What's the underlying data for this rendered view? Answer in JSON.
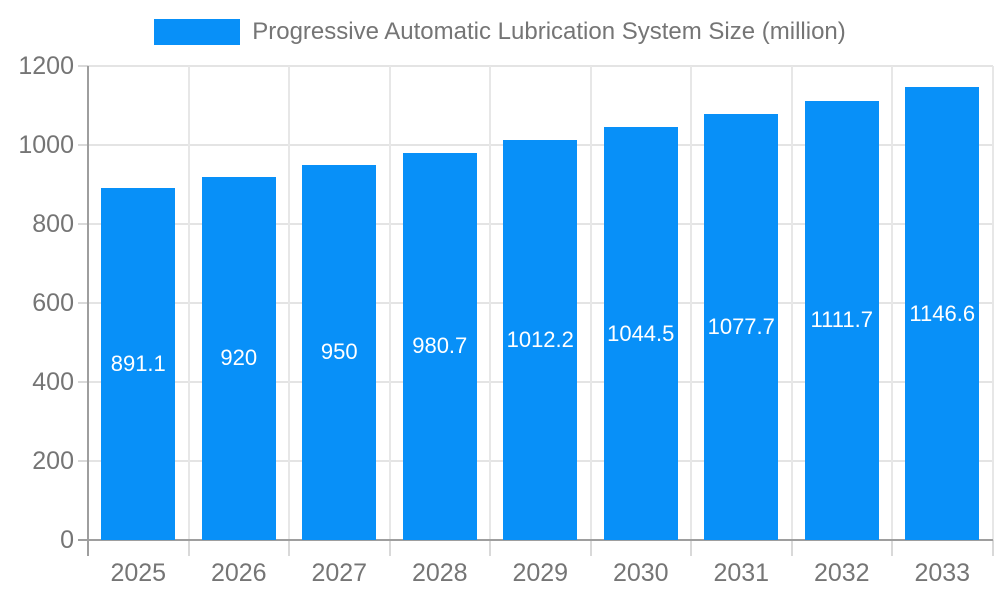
{
  "chart_data": {
    "type": "bar",
    "title": "Progressive Automatic Lubrication System Size (million)",
    "legend_position": "top-center",
    "categories": [
      "2025",
      "2026",
      "2027",
      "2028",
      "2029",
      "2030",
      "2031",
      "2032",
      "2033"
    ],
    "values": [
      891.1,
      920,
      950,
      980.7,
      1012.2,
      1044.5,
      1077.7,
      1111.7,
      1146.6
    ],
    "value_labels": [
      "891.1",
      "920",
      "950",
      "980.7",
      "1012.2",
      "1044.5",
      "1077.7",
      "1111.7",
      "1146.6"
    ],
    "xlabel": "",
    "ylabel": "",
    "yticks": [
      0,
      200,
      400,
      600,
      800,
      1000,
      1200
    ],
    "ylim": [
      0,
      1200
    ],
    "grid": "on",
    "bar_color": "#0890f8",
    "bar_value_label_color": "#ffffff",
    "axis_text_color": "#757575"
  }
}
